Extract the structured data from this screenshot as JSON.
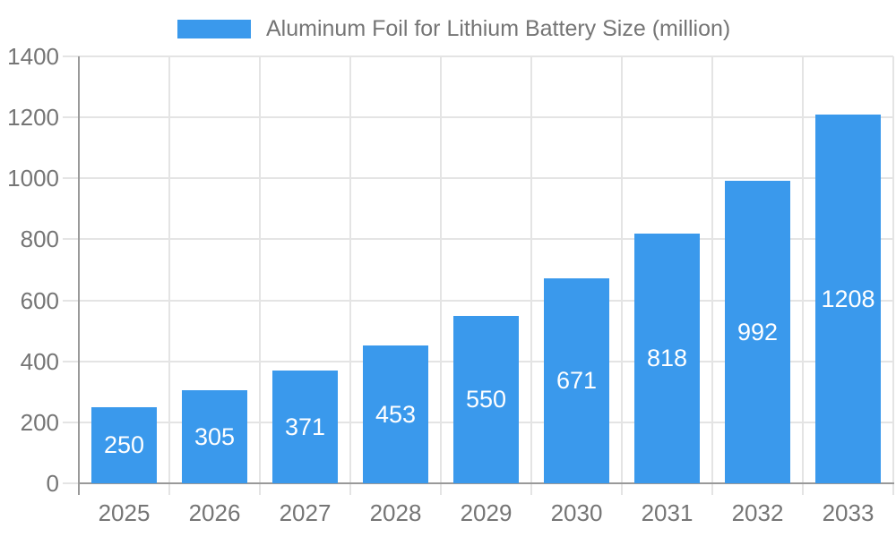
{
  "chart_data": {
    "type": "bar",
    "title": "Aluminum Foil for Lithium Battery Size (million)",
    "categories": [
      "2025",
      "2026",
      "2027",
      "2028",
      "2029",
      "2030",
      "2031",
      "2032",
      "2033"
    ],
    "series": [
      {
        "name": "Aluminum Foil for Lithium Battery Size (million)",
        "values": [
          250,
          305,
          371,
          453,
          550,
          671,
          818,
          992,
          1208
        ]
      }
    ],
    "xlabel": "",
    "ylabel": "",
    "ylim": [
      0,
      1400
    ],
    "yticks": [
      0,
      200,
      400,
      600,
      800,
      1000,
      1200,
      1400
    ],
    "grid": true,
    "legend_position": "top",
    "bar_value_labels_shown": true,
    "colors": {
      "bar": "#3A99EC",
      "bar_value_label": "#FFFFFF",
      "grid": "#E4E4E4",
      "axis": "#999999",
      "text": "#757575",
      "background": "#FFFFFF"
    }
  }
}
